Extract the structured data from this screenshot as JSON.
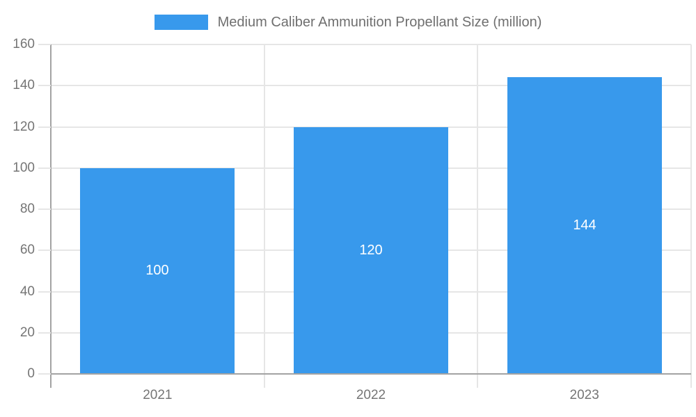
{
  "legend": {
    "label": "Medium Caliber Ammunition Propellant Size (million)"
  },
  "chart_data": {
    "type": "bar",
    "title": "Medium Caliber Ammunition Propellant Size (million)",
    "categories": [
      "2021",
      "2022",
      "2023"
    ],
    "series": [
      {
        "name": "Medium Caliber Ammunition Propellant Size (million)",
        "values": [
          100,
          120,
          144
        ]
      }
    ],
    "bar_labels": [
      "100",
      "120",
      "144"
    ],
    "xlabel": "",
    "ylabel": "",
    "ylim": [
      0,
      160
    ],
    "y_ticks": [
      0,
      20,
      40,
      60,
      80,
      100,
      120,
      140,
      160
    ],
    "grid": true,
    "legend_position": "top",
    "colors": {
      "bar": "#3899ec",
      "grid": "#e6e6e6",
      "axis": "#a3a3a3",
      "text": "#757575",
      "bar_label": "#ffffff"
    }
  }
}
